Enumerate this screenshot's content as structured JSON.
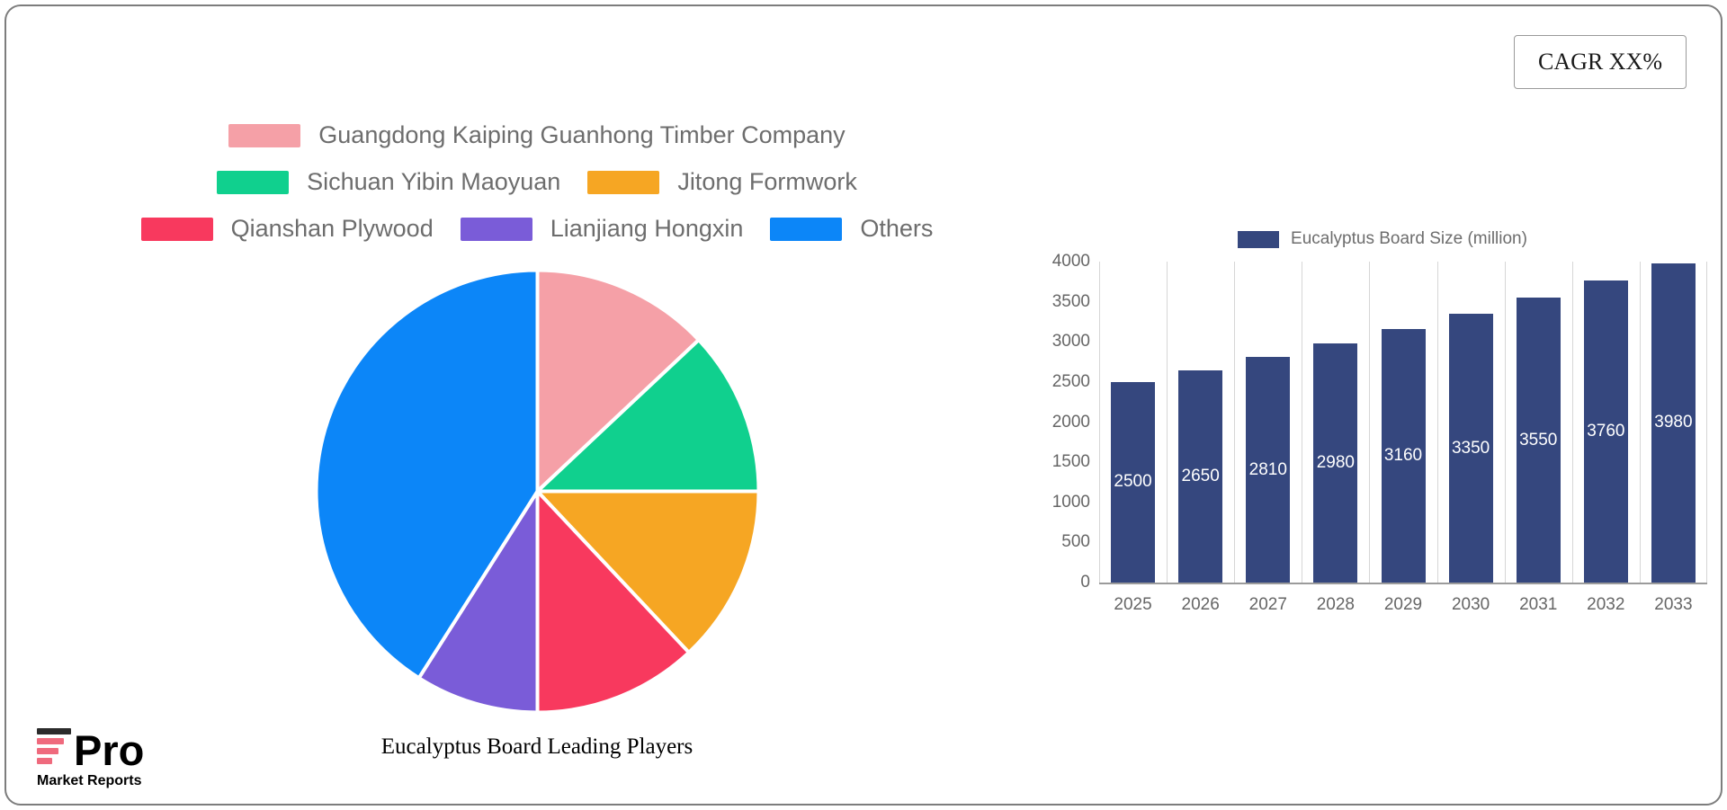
{
  "header": {
    "cagr_label": "CAGR XX%"
  },
  "logo": {
    "name": "Pro",
    "tagline": "Market Reports",
    "accent_color": "#EF6A7D",
    "icon": "stripes-flag-icon"
  },
  "chart_data": [
    {
      "type": "pie",
      "title": "Eucalyptus Board Leading Players",
      "labels": [
        "Guangdong Kaiping Guanhong Timber Company",
        "Sichuan Yibin Maoyuan",
        "Jitong Formwork",
        "Qianshan Plywood",
        "Lianjiang Hongxin",
        "Others"
      ],
      "values": [
        13,
        12,
        13,
        12,
        9,
        41
      ],
      "colors": [
        "#F5A0A7",
        "#10D08E",
        "#F6A623",
        "#F8395E",
        "#7A5CD8",
        "#0C86F8"
      ],
      "legend_position": "top",
      "legend_rows": [
        [
          0
        ],
        [
          1,
          2
        ],
        [
          3,
          4,
          5
        ]
      ],
      "slice_gap_color": "#FFFFFF"
    },
    {
      "type": "bar",
      "title": "Eucalyptus Board Size (million)",
      "categories": [
        "2025",
        "2026",
        "2027",
        "2028",
        "2029",
        "2030",
        "2031",
        "2032",
        "2033"
      ],
      "values": [
        2500,
        2650,
        2810,
        2980,
        3160,
        3350,
        3550,
        3760,
        3980
      ],
      "bar_color": "#35477E",
      "ylim": [
        0,
        4000
      ],
      "y_ticks": [
        0,
        500,
        1000,
        1500,
        2000,
        2500,
        3000,
        3500,
        4000
      ],
      "grid": "vertical",
      "legend_position": "top",
      "value_labels": "inside-white"
    }
  ]
}
